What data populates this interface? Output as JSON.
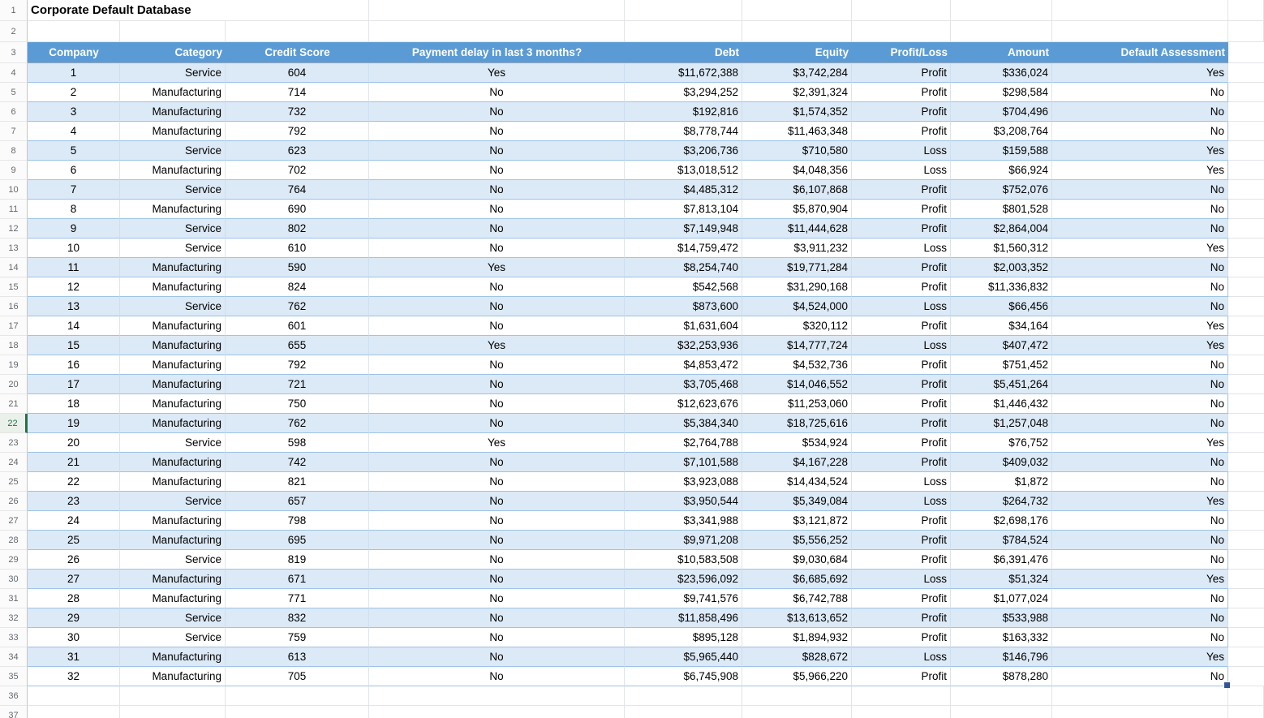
{
  "title": "Corporate Default Database",
  "grid": {
    "top_row_numbers": [
      "1",
      "2",
      "3"
    ],
    "data_row_start": 4,
    "bottom_row_numbers": [
      "36",
      "37"
    ],
    "active_row": 22
  },
  "table": {
    "columns": [
      {
        "id": "company",
        "label": "Company",
        "align": "center"
      },
      {
        "id": "category",
        "label": "Category",
        "align": "right"
      },
      {
        "id": "credit_score",
        "label": "Credit Score",
        "align": "center"
      },
      {
        "id": "payment_delay",
        "label": "Payment delay in last 3 months?",
        "align": "center"
      },
      {
        "id": "debt",
        "label": "Debt",
        "align": "right"
      },
      {
        "id": "equity",
        "label": "Equity",
        "align": "right"
      },
      {
        "id": "profit_loss",
        "label": "Profit/Loss",
        "align": "right"
      },
      {
        "id": "amount",
        "label": "Amount",
        "align": "right"
      },
      {
        "id": "default_assessment",
        "label": "Default Assessment",
        "align": "right"
      }
    ],
    "rows": [
      [
        1,
        "Service",
        604,
        "Yes",
        "$11,672,388",
        "$3,742,284",
        "Profit",
        "$336,024",
        "Yes"
      ],
      [
        2,
        "Manufacturing",
        714,
        "No",
        "$3,294,252",
        "$2,391,324",
        "Profit",
        "$298,584",
        "No"
      ],
      [
        3,
        "Manufacturing",
        732,
        "No",
        "$192,816",
        "$1,574,352",
        "Profit",
        "$704,496",
        "No"
      ],
      [
        4,
        "Manufacturing",
        792,
        "No",
        "$8,778,744",
        "$11,463,348",
        "Profit",
        "$3,208,764",
        "No"
      ],
      [
        5,
        "Service",
        623,
        "No",
        "$3,206,736",
        "$710,580",
        "Loss",
        "$159,588",
        "Yes"
      ],
      [
        6,
        "Manufacturing",
        702,
        "No",
        "$13,018,512",
        "$4,048,356",
        "Loss",
        "$66,924",
        "Yes"
      ],
      [
        7,
        "Service",
        764,
        "No",
        "$4,485,312",
        "$6,107,868",
        "Profit",
        "$752,076",
        "No"
      ],
      [
        8,
        "Manufacturing",
        690,
        "No",
        "$7,813,104",
        "$5,870,904",
        "Profit",
        "$801,528",
        "No"
      ],
      [
        9,
        "Service",
        802,
        "No",
        "$7,149,948",
        "$11,444,628",
        "Profit",
        "$2,864,004",
        "No"
      ],
      [
        10,
        "Service",
        610,
        "No",
        "$14,759,472",
        "$3,911,232",
        "Loss",
        "$1,560,312",
        "Yes"
      ],
      [
        11,
        "Manufacturing",
        590,
        "Yes",
        "$8,254,740",
        "$19,771,284",
        "Profit",
        "$2,003,352",
        "No"
      ],
      [
        12,
        "Manufacturing",
        824,
        "No",
        "$542,568",
        "$31,290,168",
        "Profit",
        "$11,336,832",
        "No"
      ],
      [
        13,
        "Service",
        762,
        "No",
        "$873,600",
        "$4,524,000",
        "Loss",
        "$66,456",
        "No"
      ],
      [
        14,
        "Manufacturing",
        601,
        "No",
        "$1,631,604",
        "$320,112",
        "Profit",
        "$34,164",
        "Yes"
      ],
      [
        15,
        "Manufacturing",
        655,
        "Yes",
        "$32,253,936",
        "$14,777,724",
        "Loss",
        "$407,472",
        "Yes"
      ],
      [
        16,
        "Manufacturing",
        792,
        "No",
        "$4,853,472",
        "$4,532,736",
        "Profit",
        "$751,452",
        "No"
      ],
      [
        17,
        "Manufacturing",
        721,
        "No",
        "$3,705,468",
        "$14,046,552",
        "Profit",
        "$5,451,264",
        "No"
      ],
      [
        18,
        "Manufacturing",
        750,
        "No",
        "$12,623,676",
        "$11,253,060",
        "Profit",
        "$1,446,432",
        "No"
      ],
      [
        19,
        "Manufacturing",
        762,
        "No",
        "$5,384,340",
        "$18,725,616",
        "Profit",
        "$1,257,048",
        "No"
      ],
      [
        20,
        "Service",
        598,
        "Yes",
        "$2,764,788",
        "$534,924",
        "Profit",
        "$76,752",
        "Yes"
      ],
      [
        21,
        "Manufacturing",
        742,
        "No",
        "$7,101,588",
        "$4,167,228",
        "Profit",
        "$409,032",
        "No"
      ],
      [
        22,
        "Manufacturing",
        821,
        "No",
        "$3,923,088",
        "$14,434,524",
        "Loss",
        "$1,872",
        "No"
      ],
      [
        23,
        "Service",
        657,
        "No",
        "$3,950,544",
        "$5,349,084",
        "Loss",
        "$264,732",
        "Yes"
      ],
      [
        24,
        "Manufacturing",
        798,
        "No",
        "$3,341,988",
        "$3,121,872",
        "Profit",
        "$2,698,176",
        "No"
      ],
      [
        25,
        "Manufacturing",
        695,
        "No",
        "$9,971,208",
        "$5,556,252",
        "Profit",
        "$784,524",
        "No"
      ],
      [
        26,
        "Service",
        819,
        "No",
        "$10,583,508",
        "$9,030,684",
        "Profit",
        "$6,391,476",
        "No"
      ],
      [
        27,
        "Manufacturing",
        671,
        "No",
        "$23,596,092",
        "$6,685,692",
        "Loss",
        "$51,324",
        "Yes"
      ],
      [
        28,
        "Manufacturing",
        771,
        "No",
        "$9,741,576",
        "$6,742,788",
        "Profit",
        "$1,077,024",
        "No"
      ],
      [
        29,
        "Service",
        832,
        "No",
        "$11,858,496",
        "$13,613,652",
        "Profit",
        "$533,988",
        "No"
      ],
      [
        30,
        "Service",
        759,
        "No",
        "$895,128",
        "$1,894,932",
        "Profit",
        "$163,332",
        "No"
      ],
      [
        31,
        "Manufacturing",
        613,
        "No",
        "$5,965,440",
        "$828,672",
        "Loss",
        "$146,796",
        "Yes"
      ],
      [
        32,
        "Manufacturing",
        705,
        "No",
        "$6,745,908",
        "$5,966,220",
        "Profit",
        "$878,280",
        "No"
      ]
    ]
  },
  "colors": {
    "header_bg": "#5B9BD5",
    "header_text": "#FFFFFF",
    "band_fill": "#DCE9F6",
    "table_border": "#9DC3E6",
    "active_row_accent": "#217346",
    "fill_handle": "#2F5597"
  }
}
